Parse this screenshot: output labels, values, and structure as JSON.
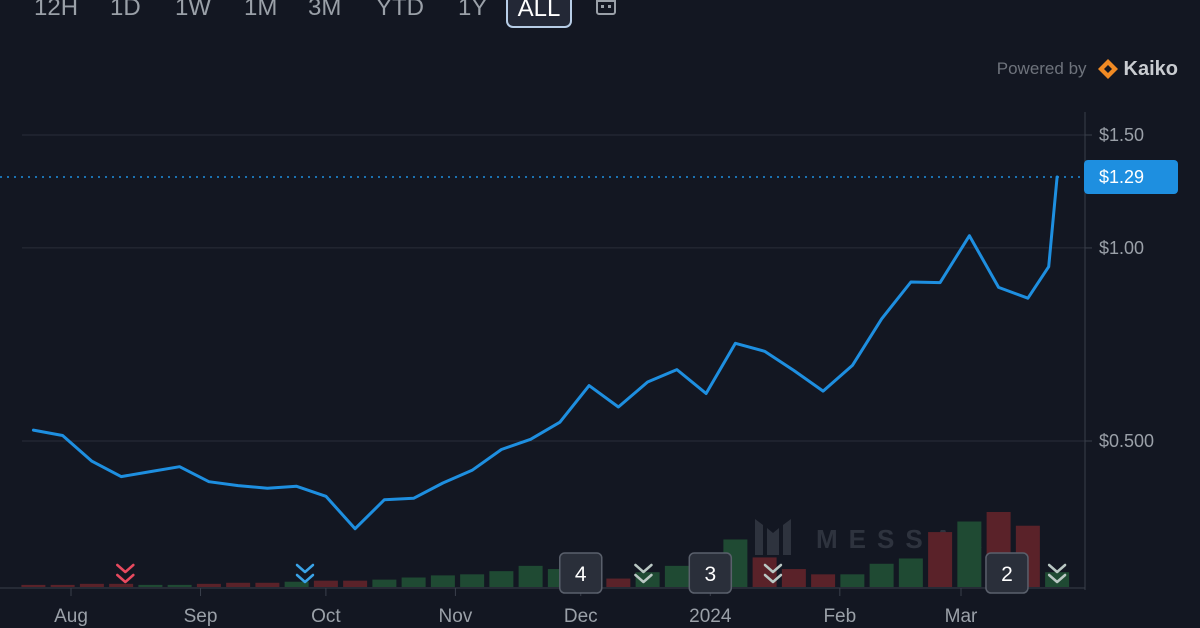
{
  "toolbar": {
    "ranges": [
      "12H",
      "1D",
      "1W",
      "1M",
      "3M",
      "YTD",
      "1Y",
      "ALL"
    ],
    "active_range": "ALL",
    "calendar_icon": "calendar-icon"
  },
  "attribution": {
    "powered_by_label": "Powered by",
    "provider": "Kaiko",
    "provider_color": "#f08a24"
  },
  "watermark": "MESSARI",
  "colors": {
    "background": "#131722",
    "price_line": "#1e8fe0",
    "current_price_tag": "#1e8fe0",
    "volume_up": "#1f4a33",
    "volume_down": "#5a2229",
    "event_down": "#e84a5f",
    "event_neutral": "#3aa3e8",
    "event_muted": "#b9c7c3",
    "grid": "#2a2e39"
  },
  "chart_data": {
    "type": "line",
    "title": "",
    "xlabel": "",
    "ylabel": "",
    "y_scale": "log",
    "ylim": [
      0.3,
      1.6
    ],
    "y_ticks": [
      {
        "value": 1.5,
        "label": "$1.50"
      },
      {
        "value": 1.0,
        "label": "$1.00"
      },
      {
        "value": 0.5,
        "label": "$0.500"
      }
    ],
    "current_price": {
      "value": 1.29,
      "label": "$1.29"
    },
    "x_ticks": [
      {
        "date": "2023-08-01",
        "label": "Aug"
      },
      {
        "date": "2023-09-01",
        "label": "Sep"
      },
      {
        "date": "2023-10-01",
        "label": "Oct"
      },
      {
        "date": "2023-11-01",
        "label": "Nov"
      },
      {
        "date": "2023-12-01",
        "label": "Dec"
      },
      {
        "date": "2024-01-01",
        "label": "2024"
      },
      {
        "date": "2024-02-01",
        "label": "Feb"
      },
      {
        "date": "2024-03-01",
        "label": "Mar"
      }
    ],
    "xlim": [
      "2023-07-14",
      "2024-03-26"
    ],
    "series": [
      {
        "values": [
          [
            "2023-07-23",
            0.52
          ],
          [
            "2023-07-30",
            0.51
          ],
          [
            "2023-08-06",
            0.465
          ],
          [
            "2023-08-13",
            0.44
          ],
          [
            "2023-08-20",
            0.448
          ],
          [
            "2023-08-27",
            0.456
          ],
          [
            "2023-09-03",
            0.432
          ],
          [
            "2023-09-10",
            0.426
          ],
          [
            "2023-09-17",
            0.422
          ],
          [
            "2023-09-24",
            0.425
          ],
          [
            "2023-10-01",
            0.41
          ],
          [
            "2023-10-08",
            0.365
          ],
          [
            "2023-10-15",
            0.405
          ],
          [
            "2023-10-22",
            0.407
          ],
          [
            "2023-10-29",
            0.43
          ],
          [
            "2023-11-05",
            0.45
          ],
          [
            "2023-11-12",
            0.485
          ],
          [
            "2023-11-19",
            0.503
          ],
          [
            "2023-11-26",
            0.535
          ],
          [
            "2023-12-03",
            0.61
          ],
          [
            "2023-12-10",
            0.565
          ],
          [
            "2023-12-17",
            0.618
          ],
          [
            "2023-12-24",
            0.646
          ],
          [
            "2023-12-31",
            0.593
          ],
          [
            "2024-01-07",
            0.71
          ],
          [
            "2024-01-14",
            0.69
          ],
          [
            "2024-01-21",
            0.644
          ],
          [
            "2024-01-28",
            0.598
          ],
          [
            "2024-02-04",
            0.656
          ],
          [
            "2024-02-11",
            0.775
          ],
          [
            "2024-02-18",
            0.885
          ],
          [
            "2024-02-25",
            0.883
          ],
          [
            "2024-03-03",
            1.045
          ],
          [
            "2024-03-10",
            0.868
          ],
          [
            "2024-03-17",
            0.835
          ],
          [
            "2024-03-22",
            0.935
          ],
          [
            "2024-03-24",
            1.29
          ]
        ]
      }
    ],
    "volume": [
      {
        "date": "2023-07-23",
        "value": 2,
        "dir": "down"
      },
      {
        "date": "2023-07-30",
        "value": 2,
        "dir": "down"
      },
      {
        "date": "2023-08-06",
        "value": 3,
        "dir": "down"
      },
      {
        "date": "2023-08-13",
        "value": 3,
        "dir": "down"
      },
      {
        "date": "2023-08-20",
        "value": 2,
        "dir": "up"
      },
      {
        "date": "2023-08-27",
        "value": 2,
        "dir": "up"
      },
      {
        "date": "2023-09-03",
        "value": 3,
        "dir": "down"
      },
      {
        "date": "2023-09-10",
        "value": 4,
        "dir": "down"
      },
      {
        "date": "2023-09-17",
        "value": 4,
        "dir": "down"
      },
      {
        "date": "2023-09-24",
        "value": 5,
        "dir": "up"
      },
      {
        "date": "2023-10-01",
        "value": 6,
        "dir": "down"
      },
      {
        "date": "2023-10-08",
        "value": 6,
        "dir": "down"
      },
      {
        "date": "2023-10-15",
        "value": 7,
        "dir": "up"
      },
      {
        "date": "2023-10-22",
        "value": 9,
        "dir": "up"
      },
      {
        "date": "2023-10-29",
        "value": 11,
        "dir": "up"
      },
      {
        "date": "2023-11-05",
        "value": 12,
        "dir": "up"
      },
      {
        "date": "2023-11-12",
        "value": 15,
        "dir": "up"
      },
      {
        "date": "2023-11-19",
        "value": 20,
        "dir": "up"
      },
      {
        "date": "2023-11-26",
        "value": 17,
        "dir": "up"
      },
      {
        "date": "2023-12-03",
        "value": 16,
        "dir": "up"
      },
      {
        "date": "2023-12-10",
        "value": 8,
        "dir": "down"
      },
      {
        "date": "2023-12-17",
        "value": 14,
        "dir": "up"
      },
      {
        "date": "2023-12-24",
        "value": 20,
        "dir": "up"
      },
      {
        "date": "2023-12-31",
        "value": 15,
        "dir": "down"
      },
      {
        "date": "2024-01-07",
        "value": 45,
        "dir": "up"
      },
      {
        "date": "2024-01-14",
        "value": 28,
        "dir": "down"
      },
      {
        "date": "2024-01-21",
        "value": 17,
        "dir": "down"
      },
      {
        "date": "2024-01-28",
        "value": 12,
        "dir": "down"
      },
      {
        "date": "2024-02-04",
        "value": 12,
        "dir": "up"
      },
      {
        "date": "2024-02-11",
        "value": 22,
        "dir": "up"
      },
      {
        "date": "2024-02-18",
        "value": 27,
        "dir": "up"
      },
      {
        "date": "2024-02-25",
        "value": 52,
        "dir": "down"
      },
      {
        "date": "2024-03-03",
        "value": 62,
        "dir": "up"
      },
      {
        "date": "2024-03-10",
        "value": 71,
        "dir": "down"
      },
      {
        "date": "2024-03-17",
        "value": 58,
        "dir": "down"
      },
      {
        "date": "2024-03-24",
        "value": 14,
        "dir": "up"
      }
    ],
    "events": [
      {
        "date": "2023-08-14",
        "kind": "double-chevron",
        "color": "#e84a5f"
      },
      {
        "date": "2023-09-26",
        "kind": "double-chevron",
        "color": "#3aa3e8"
      },
      {
        "date": "2023-12-01",
        "kind": "count",
        "count": "4"
      },
      {
        "date": "2023-12-16",
        "kind": "double-chevron",
        "color": "#b9c7c3"
      },
      {
        "date": "2024-01-01",
        "kind": "count",
        "count": "3"
      },
      {
        "date": "2024-01-16",
        "kind": "double-chevron",
        "color": "#b9c7c3"
      },
      {
        "date": "2024-03-12",
        "kind": "count",
        "count": "2"
      },
      {
        "date": "2024-03-24",
        "kind": "double-chevron",
        "color": "#b9c7c3"
      }
    ]
  }
}
